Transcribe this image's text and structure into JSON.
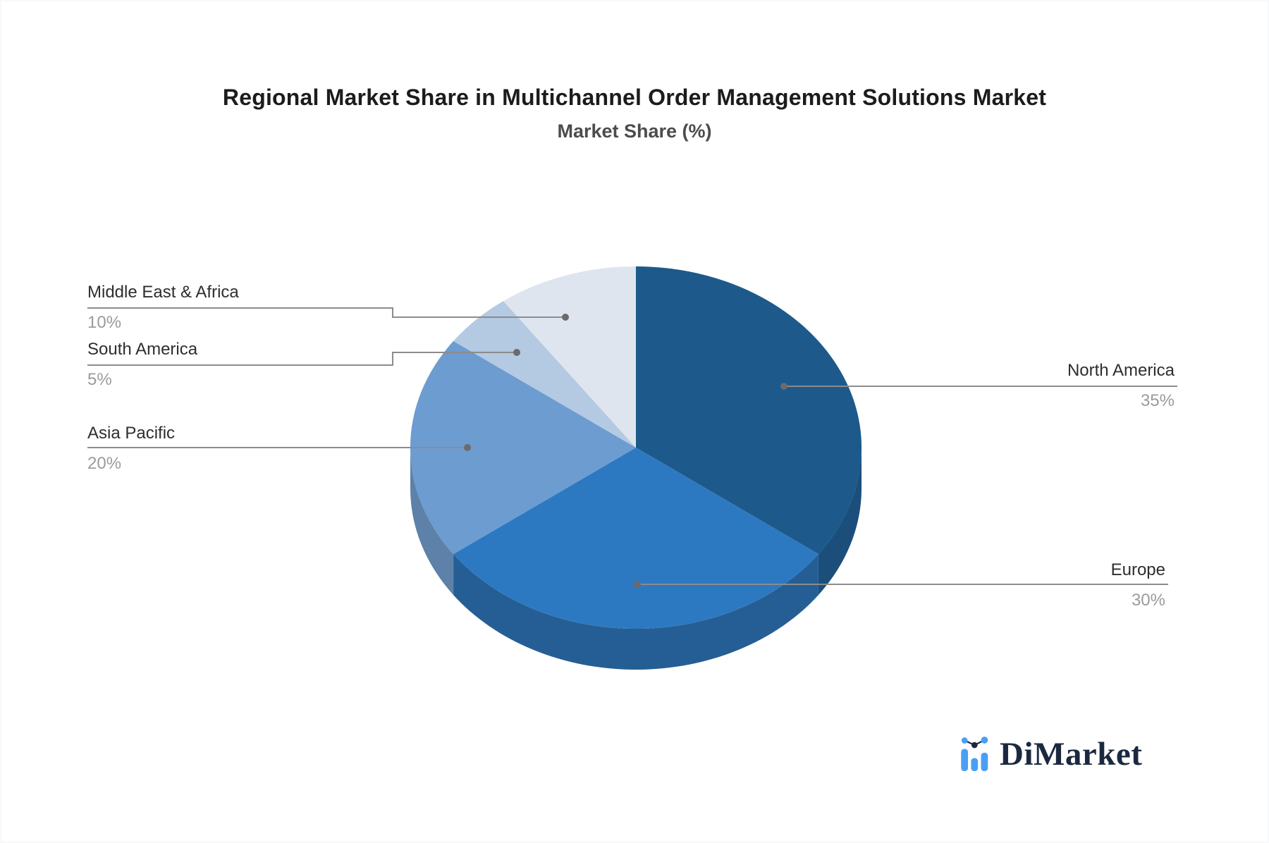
{
  "chart_data": {
    "type": "pie",
    "style": "3d",
    "title": "Regional Market Share in Multichannel Order Management Solutions Market",
    "subtitle": "Market Share (%)",
    "unit": "%",
    "start_angle_deg": 0,
    "direction": "clockwise",
    "legend_position": "callout-labels",
    "slices": [
      {
        "label": "North America",
        "value": 35,
        "display": "35%",
        "color": "#1d5a8b",
        "wall_color": "#1b4e7b"
      },
      {
        "label": "Europe",
        "value": 30,
        "display": "30%",
        "color": "#2d79c1",
        "wall_color": "#255e94"
      },
      {
        "label": "Asia Pacific",
        "value": 20,
        "display": "20%",
        "color": "#6d9cd1",
        "wall_color": "#5d81a9"
      },
      {
        "label": "South America",
        "value": 5,
        "display": "5%",
        "color": "#b4c9e2",
        "wall_color": "#9db7d2"
      },
      {
        "label": "Middle East & Africa",
        "value": 10,
        "display": "10%",
        "color": "#dfe5ee",
        "wall_color": "#c6cedd"
      }
    ],
    "callout_line_color": "#8c8c8c",
    "callout_dot_color": "#6b6b6b"
  },
  "logo": {
    "text": "DiMarket",
    "accent_color": "#4b9ef5",
    "text_color": "#1b2940"
  }
}
